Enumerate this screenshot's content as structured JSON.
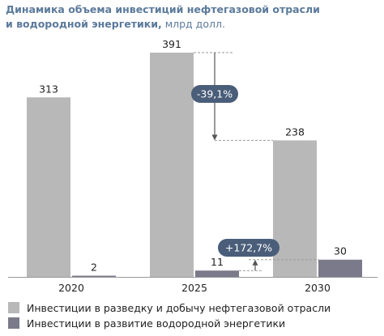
{
  "title": {
    "line1": "Динамика объема инвестиций нефтегазовой отрасли",
    "line2": "и водородной энергетики,",
    "unit": " млрд долл."
  },
  "chart_data": {
    "type": "bar",
    "categories": [
      "2020",
      "2025",
      "2030"
    ],
    "series": [
      {
        "name": "Инвестиции в разведку и добычу нефтегазовой отрасли",
        "color": "#b8b8b8",
        "values": [
          313,
          391,
          238
        ]
      },
      {
        "name": "Инвестиции в развитие водородной энергетики",
        "color": "#7a7a8a",
        "values": [
          2,
          11,
          30
        ]
      }
    ],
    "ylim": [
      0,
      400
    ],
    "value_labels": [
      [
        "313",
        "391",
        "238"
      ],
      [
        "2",
        "11",
        "30"
      ]
    ],
    "annotations": [
      {
        "text": "-39,1%",
        "color": "#4a5e7a",
        "from_series": 0,
        "from": 1,
        "to": 2
      },
      {
        "text": "+172,7%",
        "color": "#4a5e7a",
        "from_series": 1,
        "from": 1,
        "to": 2
      }
    ],
    "grid": false,
    "legend_position": "bottom"
  }
}
